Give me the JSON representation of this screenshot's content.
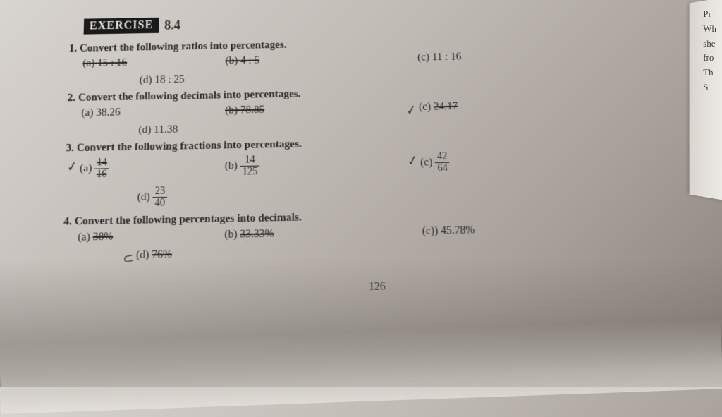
{
  "exercise": {
    "label": "EXERCISE",
    "number": "8.4"
  },
  "questions": [
    {
      "number": "1.",
      "text": "Convert the following ratios into percentages.",
      "options": {
        "a": "15 : 16",
        "b": "4 : 5",
        "c": "11 : 16",
        "d": "18 : 25"
      }
    },
    {
      "number": "2.",
      "text": "Convert the following decimals into percentages.",
      "options": {
        "a": "38.26",
        "b": "78.85",
        "c": "24.17",
        "d": "11.38"
      }
    },
    {
      "number": "3.",
      "text": "Convert the following fractions into percentages.",
      "options": {
        "a": {
          "num": "14",
          "den": "16"
        },
        "b": {
          "num": "14",
          "den": "125"
        },
        "c": {
          "num": "42",
          "den": "64"
        },
        "d": {
          "num": "23",
          "den": "40"
        }
      }
    },
    {
      "number": "4.",
      "text": "Convert the following percentages into decimals.",
      "options": {
        "a": "38%",
        "b": "33.33%",
        "c": "45.78%",
        "d": "76%"
      }
    }
  ],
  "pageNumber": "126",
  "rightPageFragments": [
    "Pr",
    "Wh",
    "she",
    "fro",
    "Th",
    "S"
  ],
  "styling": {
    "bodyWidth": 1024,
    "bodyHeight": 549,
    "textColor": "#2a2a2a",
    "headerBg": "#1a1a1a",
    "headerColor": "#e8e6e2",
    "fontSize": 15,
    "fontFamily": "Georgia, Times New Roman, serif"
  }
}
